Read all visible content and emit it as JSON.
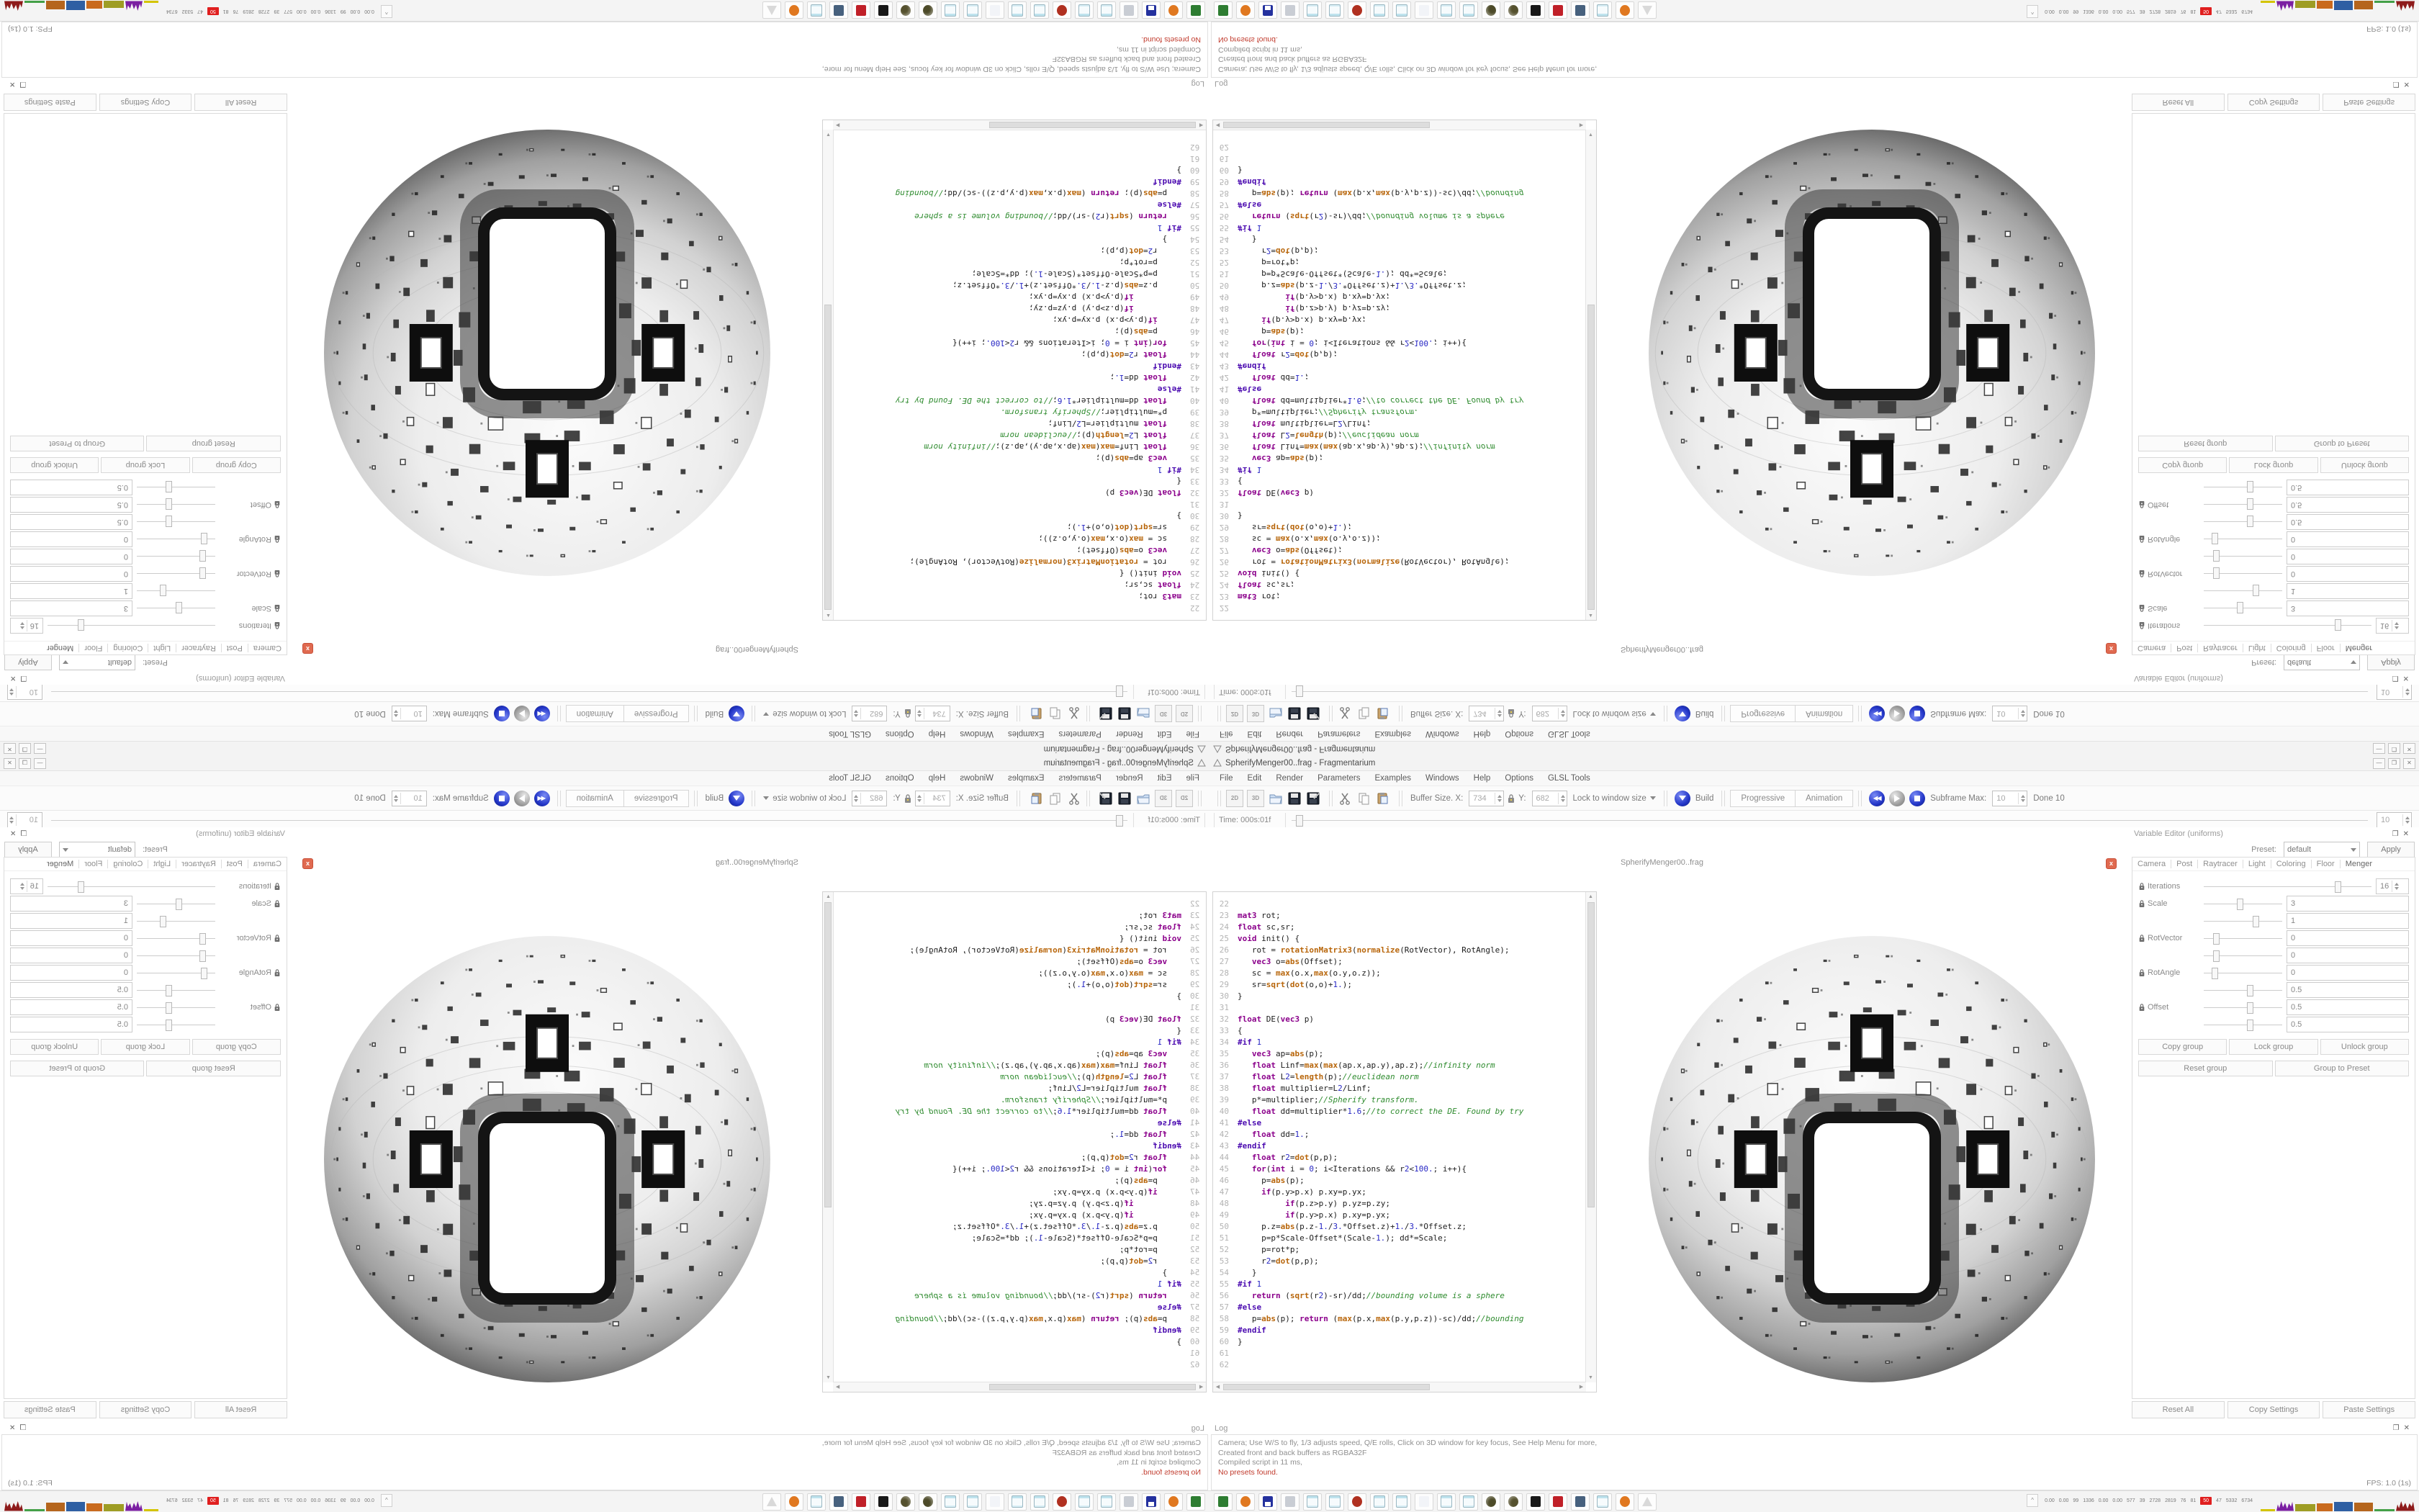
{
  "window": {
    "title": "SpherifyMenger00..frag - Fragmentarium",
    "controls": {
      "minimize": "—",
      "restore": "❐",
      "close": "✕"
    }
  },
  "menu": [
    "File",
    "Edit",
    "Render",
    "Parameters",
    "Examples",
    "Windows",
    "Help",
    "Options",
    "GLSL Tools"
  ],
  "toolbar": {
    "btn_2d": "2D",
    "btn_3d": "3D",
    "buffer_size_label": "Buffer Size. X:",
    "buffer_x": "734",
    "y_label": "Y:",
    "buffer_y": "682",
    "lock_to_window": "Lock to window size",
    "build": "Build",
    "progressive": "Progressive",
    "animation": "Animation",
    "subframe_label": "Subframe Max:",
    "subframe_max": "10",
    "done": "Done 10"
  },
  "timebar": {
    "label": "Time: 000s:01f",
    "spin": "10",
    "handle_pos": 0.004
  },
  "editor": {
    "lines": [
      {
        "n": 22,
        "t": ""
      },
      {
        "n": 23,
        "t": "mat3 rot;"
      },
      {
        "n": 24,
        "t": "float sc,sr;"
      },
      {
        "n": 25,
        "t": "void init() {"
      },
      {
        "n": 26,
        "t": "   rot = rotationMatrix3(normalize(RotVector), RotAngle);"
      },
      {
        "n": 27,
        "t": "   vec3 o=abs(Offset);"
      },
      {
        "n": 28,
        "t": "   sc = max(o.x,max(o.y,o.z));"
      },
      {
        "n": 29,
        "t": "   sr=sqrt(dot(o,o)+1.);"
      },
      {
        "n": 30,
        "t": "}"
      },
      {
        "n": 31,
        "t": ""
      },
      {
        "n": 32,
        "t": "float DE(vec3 p)"
      },
      {
        "n": 33,
        "t": "{"
      },
      {
        "n": 34,
        "t": "#if 1"
      },
      {
        "n": 35,
        "t": "   vec3 ap=abs(p);"
      },
      {
        "n": 36,
        "t": "   float Linf=max(max(ap.x,ap.y),ap.z);//infinity norm"
      },
      {
        "n": 37,
        "t": "   float L2=length(p);//euclidean norm"
      },
      {
        "n": 38,
        "t": "   float multiplier=L2/Linf;"
      },
      {
        "n": 39,
        "t": "   p*=multiplier;//Spherify transform."
      },
      {
        "n": 40,
        "t": "   float dd=multiplier*1.6;//to correct the DE. Found by try"
      },
      {
        "n": 41,
        "t": "#else"
      },
      {
        "n": 42,
        "t": "   float dd=1.;"
      },
      {
        "n": 43,
        "t": "#endif"
      },
      {
        "n": 44,
        "t": "   float r2=dot(p,p);"
      },
      {
        "n": 45,
        "t": "   for(int i = 0; i<Iterations && r2<100.; i++){"
      },
      {
        "n": 46,
        "t": "     p=abs(p);"
      },
      {
        "n": 47,
        "t": "     if(p.y>p.x) p.xy=p.yx;"
      },
      {
        "n": 48,
        "t": "          if(p.z>p.y) p.yz=p.zy;"
      },
      {
        "n": 49,
        "t": "          if(p.y>p.x) p.xy=p.yx;"
      },
      {
        "n": 50,
        "t": "     p.z=abs(p.z-1./3.*Offset.z)+1./3.*Offset.z;"
      },
      {
        "n": 51,
        "t": "     p=p*Scale-Offset*(Scale-1.); dd*=Scale;"
      },
      {
        "n": 52,
        "t": "     p=rot*p;"
      },
      {
        "n": 53,
        "t": "     r2=dot(p,p);"
      },
      {
        "n": 54,
        "t": "   }"
      },
      {
        "n": 55,
        "t": "#if 1"
      },
      {
        "n": 56,
        "t": "   return (sqrt(r2)-sr)/dd;//bounding volume is a sphere"
      },
      {
        "n": 57,
        "t": "#else"
      },
      {
        "n": 58,
        "t": "   p=abs(p); return (max(p.x,max(p.y,p.z))-sc)/dd;//bounding"
      },
      {
        "n": 59,
        "t": "#endif"
      },
      {
        "n": 60,
        "t": "}"
      },
      {
        "n": 61,
        "t": ""
      },
      {
        "n": 62,
        "t": ""
      }
    ]
  },
  "render": {
    "tab": "SpherifyMenger00..frag",
    "close_label": "x"
  },
  "panel": {
    "title": "Variable Editor (uniforms)",
    "float_icon": "❐",
    "close_icon": "✕",
    "preset_label": "Preset:",
    "preset_value": "default",
    "apply": "Apply",
    "tabs": [
      "Camera",
      "Post",
      "Raytracer",
      "Light",
      "Coloring",
      "Floor",
      "Menger"
    ],
    "active_tab": "Menger",
    "sliders": [
      {
        "label": "Iterations",
        "lock": true,
        "value": "16",
        "handle": 0.78,
        "spin": true
      },
      {
        "label": "Scale",
        "lock": true,
        "value": "3",
        "handle": 0.42,
        "spin": false
      },
      {
        "label": "",
        "lock": false,
        "value": "1",
        "handle": 0.62,
        "spin": false
      },
      {
        "label": "RotVector",
        "lock": true,
        "value": "0",
        "handle": 0.12,
        "spin": false
      },
      {
        "label": "",
        "lock": false,
        "value": "0",
        "handle": 0.12,
        "spin": false
      },
      {
        "label": "RotAngle",
        "lock": true,
        "value": "0",
        "handle": 0.1,
        "spin": false
      },
      {
        "label": "",
        "lock": false,
        "value": "0.5",
        "handle": 0.55,
        "spin": false
      },
      {
        "label": "Offset",
        "lock": true,
        "value": "0.5",
        "handle": 0.55,
        "spin": false
      },
      {
        "label": "",
        "lock": false,
        "value": "0.5",
        "handle": 0.55,
        "spin": false
      }
    ],
    "group_buttons_row1": [
      "Copy group",
      "Lock group",
      "Unlock group"
    ],
    "group_buttons_row2": [
      "Reset group",
      "Group to Preset"
    ],
    "bottom_buttons": [
      "Reset All",
      "Copy Settings",
      "Paste Settings"
    ]
  },
  "log": {
    "title": "Log",
    "lines": [
      {
        "t": "Camera; Use W/S to fly, 1/3 adjusts speed, Q/E rolls, Click on 3D window for key focus, See Help Menu for more,",
        "color": "gray"
      },
      {
        "t": "Created front and back buffers as RGBA32F",
        "color": "gray"
      },
      {
        "t": "Compiled script in 11 ms,",
        "color": "gray"
      },
      {
        "t": "No presets found.",
        "color": "red"
      }
    ],
    "fps": "FPS: 1.0 (1s)"
  },
  "taskbar": {
    "icons": [
      {
        "name": "terminal-icon",
        "kind": "flat",
        "c": "#2e7d32"
      },
      {
        "name": "firefox-icon",
        "kind": "ball",
        "c": "#e07820"
      },
      {
        "name": "floppy-64-icon",
        "kind": "floppy",
        "c": "#24319e"
      },
      {
        "name": "scroll-icon",
        "kind": "flat",
        "c": "#c9cdd4"
      },
      {
        "name": "notepad-icon",
        "kind": "notepad",
        "c": "#eaf6fa"
      },
      {
        "name": "notepad-icon",
        "kind": "notepad",
        "c": "#eaf6fa"
      },
      {
        "name": "red-splat-icon",
        "kind": "ball",
        "c": "#b03020"
      },
      {
        "name": "notepad-icon",
        "kind": "notepad",
        "c": "#eaf6fa"
      },
      {
        "name": "notepad-icon",
        "kind": "notepad",
        "c": "#eaf6fa"
      },
      {
        "name": "document-icon",
        "kind": "flat",
        "c": "#f2f4f8"
      },
      {
        "name": "notepad-icon",
        "kind": "notepad",
        "c": "#eaf6fa"
      },
      {
        "name": "notepad-icon",
        "kind": "notepad",
        "c": "#eaf6fa"
      },
      {
        "name": "dark-orb-icon",
        "kind": "orb",
        "c": "#4c4a28"
      },
      {
        "name": "dark-orb-icon",
        "kind": "orb",
        "c": "#55512e"
      },
      {
        "name": "wolf-icon",
        "kind": "flat",
        "c": "#181818"
      },
      {
        "name": "red-badge-icon",
        "kind": "flat",
        "c": "#c02028"
      },
      {
        "name": "monitor-icon",
        "kind": "flat",
        "c": "#47617e"
      },
      {
        "name": "notepad-icon",
        "kind": "notepad",
        "c": "#eaf6fa"
      },
      {
        "name": "firefox-icon",
        "kind": "ball",
        "c": "#e07820"
      },
      {
        "name": "prism-icon",
        "kind": "tri",
        "c": "#d9d9d9"
      }
    ],
    "tray_chevron": "^",
    "tray_numbers": [
      "0.00",
      "0.00",
      "99",
      "1336",
      "0.00",
      "0.00",
      "577",
      "39",
      "2728",
      "2819",
      "76",
      "81",
      "50",
      "47",
      "5332",
      "6734"
    ],
    "tray_highlight": "50",
    "tray_graphs": [
      {
        "name": "yellow-line-graph",
        "type": "line",
        "c": "#d4c400",
        "w": 20,
        "h": 3
      },
      {
        "name": "purple-spikes-graph",
        "type": "spikes",
        "c": "#7b1fa2",
        "w": 24,
        "h": 15
      },
      {
        "name": "olive-bars-graph",
        "type": "bars",
        "c": "#9e9d24",
        "w": 28,
        "h": 10
      },
      {
        "name": "orange-block-graph",
        "type": "block",
        "c": "#c96a1e",
        "w": 22,
        "h": 11
      },
      {
        "name": "blue-block-graph",
        "type": "block",
        "c": "#2e5fa3",
        "w": 26,
        "h": 13
      },
      {
        "name": "brown-block-graph",
        "type": "block",
        "c": "#b5651d",
        "w": 26,
        "h": 12
      },
      {
        "name": "green-line-graph",
        "type": "line",
        "c": "#43a047",
        "w": 28,
        "h": 3
      },
      {
        "name": "darkred-spikes-graph",
        "type": "spikes",
        "c": "#8e1b1b",
        "w": 26,
        "h": 15
      }
    ]
  },
  "colors": {
    "accent_close": "#e06a50",
    "build_blue": "#2336c8",
    "tray_alert": "#e01f1f"
  }
}
